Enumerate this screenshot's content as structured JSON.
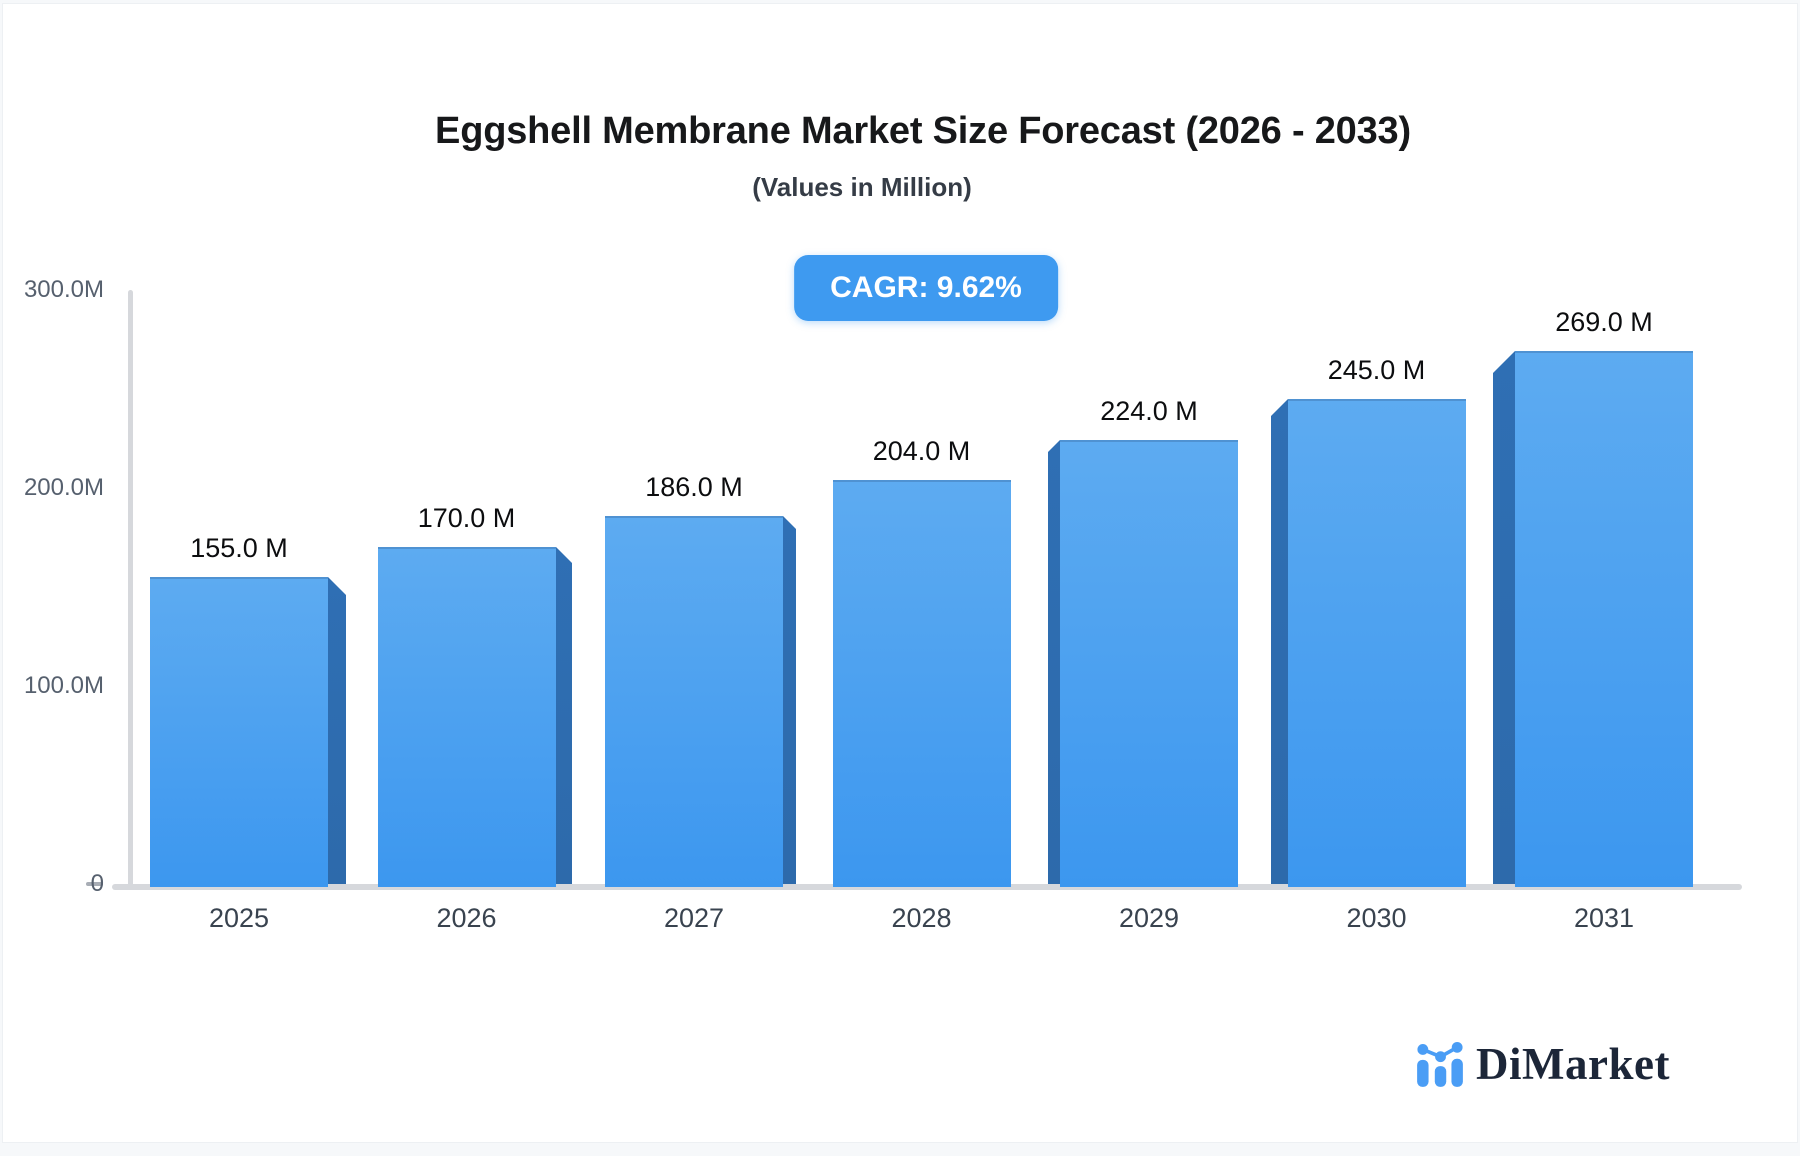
{
  "title": "Eggshell Membrane Market Size Forecast (2026 - 2033)",
  "subtitle": "(Values in Million)",
  "cagr_badge": "CAGR: 9.62%",
  "brand": {
    "name": "DiMarket"
  },
  "colors": {
    "bar_top": "#5dabf1",
    "bar_bottom": "#3c97ef",
    "bar_side": "#2f6fb4",
    "badge_bg": "#3e9af0",
    "axis": "#d6d8dc",
    "y_label": "#56606e",
    "x_label": "#39434f",
    "logo_blue": "#4a9df5",
    "logo_navy": "#1c2638"
  },
  "chart_data": {
    "type": "bar",
    "title": "Eggshell Membrane Market Size Forecast (2026 - 2033)",
    "subtitle": "(Values in Million)",
    "cagr": "9.62%",
    "categories": [
      "2025",
      "2026",
      "2027",
      "2028",
      "2029",
      "2030",
      "2031"
    ],
    "values": [
      155,
      170,
      186,
      204,
      224,
      245,
      269
    ],
    "bar_labels": [
      "155.0 M",
      "170.0 M",
      "186.0 M",
      "204.0 M",
      "224.0 M",
      "245.0 M",
      "269.0 M"
    ],
    "unit": "Million",
    "ylim": [
      0,
      300
    ],
    "ytick_values": [
      300,
      200,
      100,
      0
    ],
    "ytick_labels": [
      "300.0M",
      "200.0M",
      "100.0M",
      "0"
    ],
    "grid": false,
    "legend": "none",
    "bar_style": "3d-extruded, depth slants away from center column"
  }
}
